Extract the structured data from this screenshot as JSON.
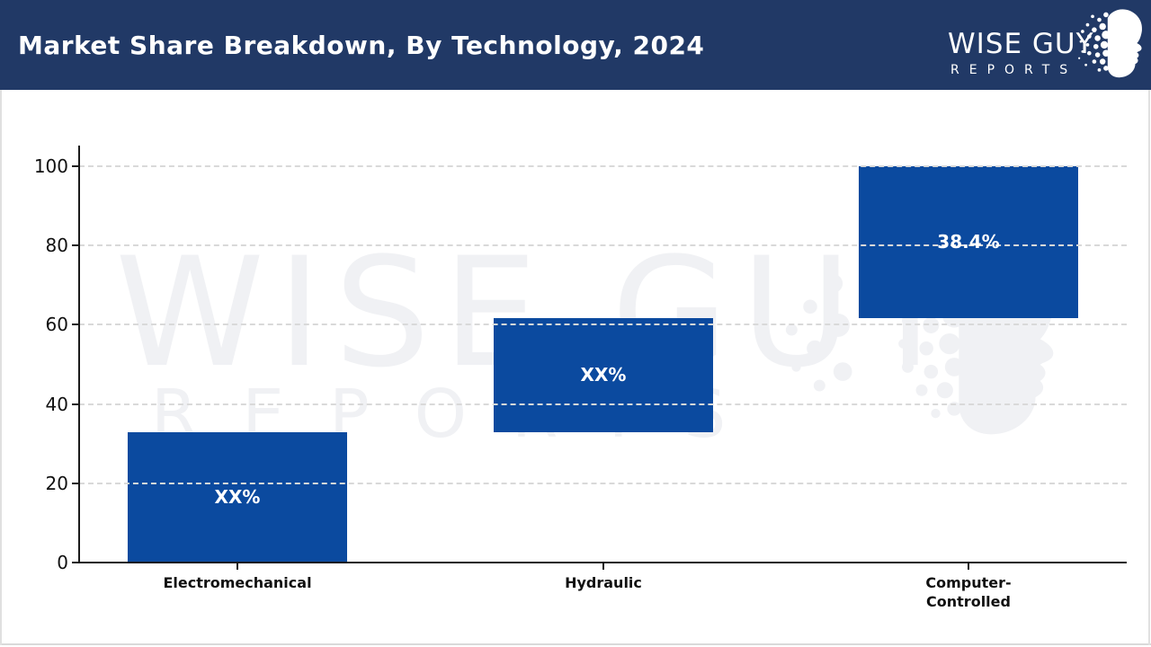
{
  "header": {
    "title": "Market Share Breakdown, By Technology, 2024",
    "logo": {
      "line1": "WISE GUY",
      "line2": "REPORTS"
    }
  },
  "watermark": {
    "line1": "WISE GUY",
    "line2": "REPORTS"
  },
  "chart_data": {
    "type": "bar",
    "subtype": "floating-range-waterfall",
    "title": "Market Share Breakdown, By Technology, 2024",
    "categories": [
      "Electromechanical",
      "Hydraulic",
      "Computer-Controlled"
    ],
    "bars": [
      {
        "category": "Electromechanical",
        "start": 0,
        "end": 32.8,
        "size": 32.8,
        "label": "XX%"
      },
      {
        "category": "Hydraulic",
        "start": 32.8,
        "end": 61.6,
        "size": 28.8,
        "label": "XX%"
      },
      {
        "category": "Computer-Controlled",
        "start": 61.6,
        "end": 100,
        "size": 38.4,
        "label": "38.4%"
      }
    ],
    "yticks": [
      0,
      20,
      40,
      60,
      80,
      100
    ],
    "ylim": [
      0,
      105
    ],
    "xlabel": "",
    "ylabel": "",
    "grid": "horizontal-dashed",
    "legend": "none",
    "colors": {
      "bar": "#0b4a9f",
      "header_bg": "#213966",
      "gridline": "#d9d9d9",
      "axis": "#1a1a1a",
      "watermark": "#f0f1f4",
      "bar_label_text": "#ffffff"
    }
  }
}
